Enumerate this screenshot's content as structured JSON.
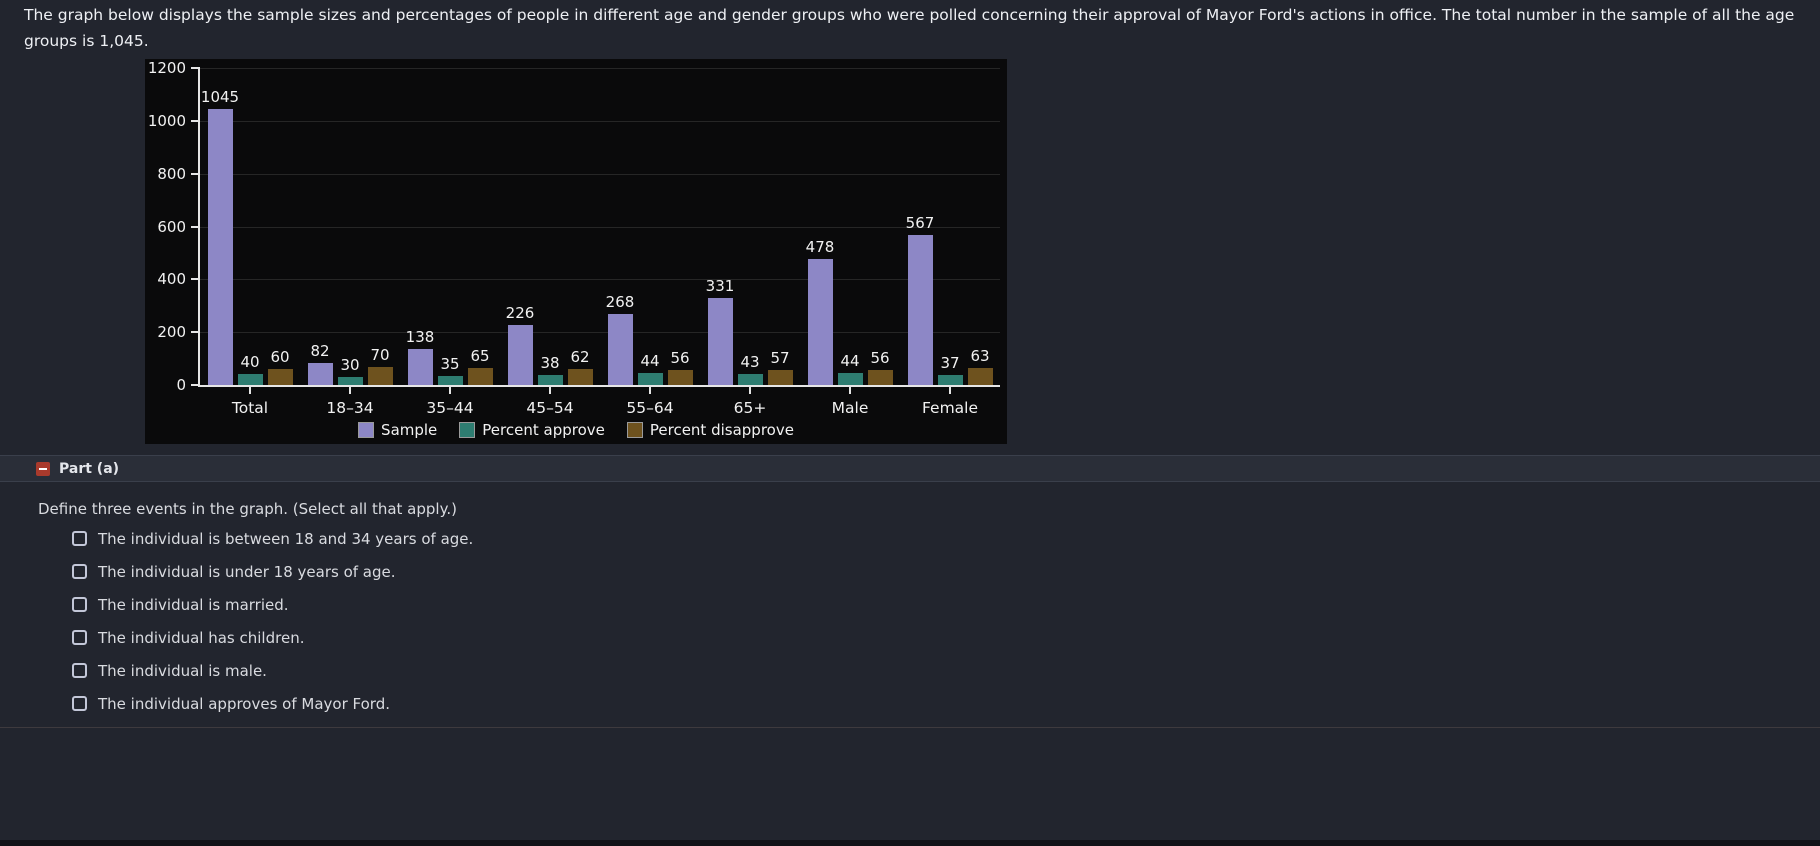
{
  "intro": {
    "text": "The graph below displays the sample sizes and percentages of people in different age and gender groups who were polled concerning their approval of Mayor Ford's actions in office. The total number in the sample of all the age groups is 1,045."
  },
  "chart_data": {
    "type": "bar",
    "categories": [
      "Total",
      "18–34",
      "35–44",
      "45–54",
      "55–64",
      "65+",
      "Male",
      "Female"
    ],
    "series": [
      {
        "name": "Sample",
        "color": "#8d87c6",
        "values": [
          1045,
          82,
          138,
          226,
          268,
          331,
          478,
          567
        ]
      },
      {
        "name": "Percent approve",
        "color": "#2e7d71",
        "values": [
          40,
          30,
          35,
          38,
          44,
          43,
          44,
          37
        ]
      },
      {
        "name": "Percent disapprove",
        "color": "#6e521e",
        "values": [
          60,
          70,
          65,
          62,
          56,
          57,
          56,
          63
        ]
      }
    ],
    "title": "",
    "xlabel": "",
    "ylabel": "",
    "ylim": [
      0,
      1200
    ],
    "yticks": [
      0,
      200,
      400,
      600,
      800,
      1000,
      1200
    ],
    "grid": true,
    "legend_position": "bottom",
    "colors": {
      "plot_background": "#0a0a0b",
      "axis": "#e6e6e6",
      "gridline": "#262626",
      "label_text": "#f2f2f2"
    }
  },
  "part_a": {
    "title": "Part (a)",
    "collapse_icon": "minus",
    "question": "Define three events in the graph. (Select all that apply.)",
    "options": [
      "The individual is between 18 and 34 years of age.",
      "The individual is under 18 years of age.",
      "The individual is married.",
      "The individual has children.",
      "The individual is male.",
      "The individual approves of Mayor Ford."
    ]
  }
}
